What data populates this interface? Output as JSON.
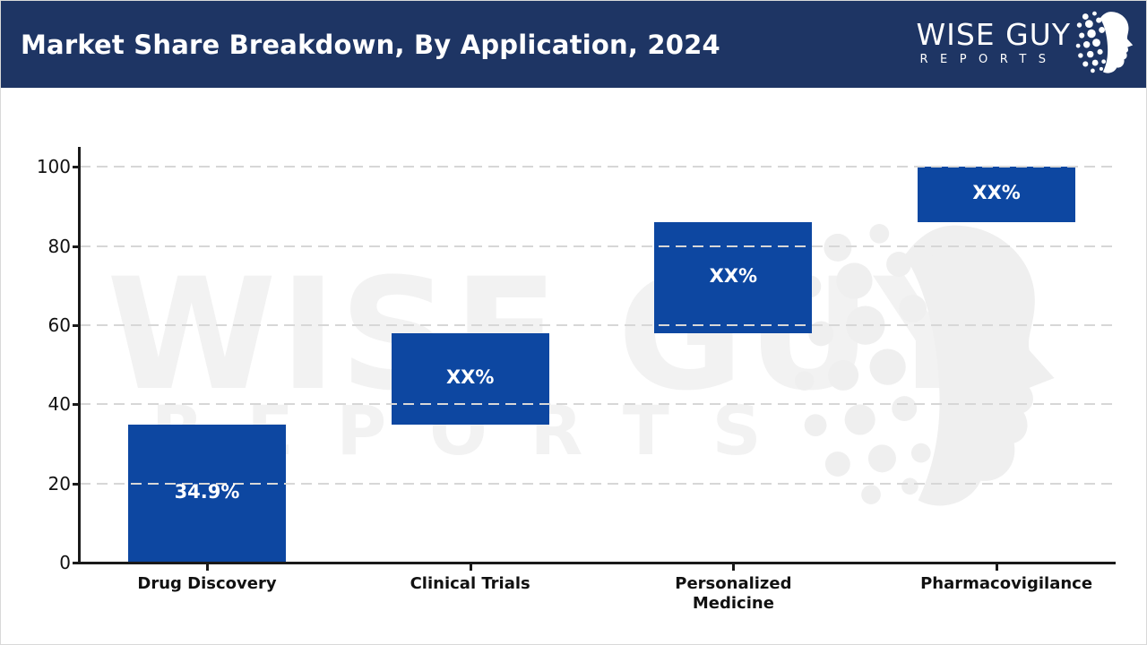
{
  "header": {
    "title": "Market Share Breakdown, By Application, 2024",
    "logo": {
      "name": "WISE GUY",
      "tagline": "REPORTS"
    },
    "bg_color": "#1e3564",
    "text_color": "#ffffff"
  },
  "watermark": {
    "text_primary": "WISE GUY",
    "text_secondary": "REPORTS",
    "color": "#f2f2f2",
    "face_color": "#efefef"
  },
  "chart_data": {
    "type": "bar",
    "subtype": "floating-segment-waterfall",
    "title": "Market Share Breakdown, By Application, 2024",
    "categories": [
      "Drug Discovery",
      "Clinical Trials",
      "Personalized Medicine",
      "Pharmacovigilance"
    ],
    "segments": [
      {
        "category": "Drug Discovery",
        "start": 0,
        "end": 34.9,
        "label": "34.9%"
      },
      {
        "category": "Clinical Trials",
        "start": 34.9,
        "end": 58,
        "label": "XX%"
      },
      {
        "category": "Personalized Medicine",
        "start": 58,
        "end": 86,
        "label": "XX%"
      },
      {
        "category": "Pharmacovigilance",
        "start": 86,
        "end": 100,
        "label": "XX%"
      }
    ],
    "xlabel": "",
    "ylabel": "",
    "ylim": [
      0,
      105
    ],
    "yticks": [
      0,
      20,
      40,
      60,
      80,
      100
    ],
    "grid": true,
    "grid_style": "dashed",
    "legend": false,
    "bar_color": "#0d47a1",
    "bar_label_color": "#ffffff",
    "axis_color": "#1a1a1a",
    "gridline_color": "#d7d7d7"
  }
}
